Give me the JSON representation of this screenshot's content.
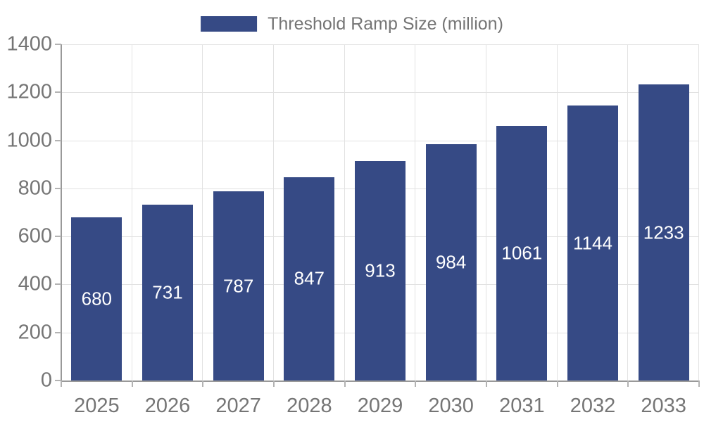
{
  "legend": {
    "label": "Threshold Ramp Size (million)"
  },
  "chart_data": {
    "type": "bar",
    "title": "Threshold Ramp Size (million)",
    "categories": [
      "2025",
      "2026",
      "2027",
      "2028",
      "2029",
      "2030",
      "2031",
      "2032",
      "2033"
    ],
    "values": [
      680,
      731,
      787,
      847,
      913,
      984,
      1061,
      1144,
      1233
    ],
    "series": [
      {
        "name": "Threshold Ramp Size (million)",
        "values": [
          680,
          731,
          787,
          847,
          913,
          984,
          1061,
          1144,
          1233
        ]
      }
    ],
    "xlabel": "",
    "ylabel": "",
    "ylim": [
      0,
      1400
    ],
    "yticks": [
      0,
      200,
      400,
      600,
      800,
      1000,
      1200,
      1400
    ],
    "grid": true,
    "legend_position": "top-center",
    "value_label_position": "inside-center",
    "colors": {
      "bar": "#364A85",
      "value_label": "#ffffff",
      "axis_text": "#757575",
      "legend_text": "#757575",
      "gridline": "#e2e2e2",
      "axis_line": "#999999",
      "tick_mark": "#b3b3b3",
      "background": "#ffffff"
    }
  }
}
